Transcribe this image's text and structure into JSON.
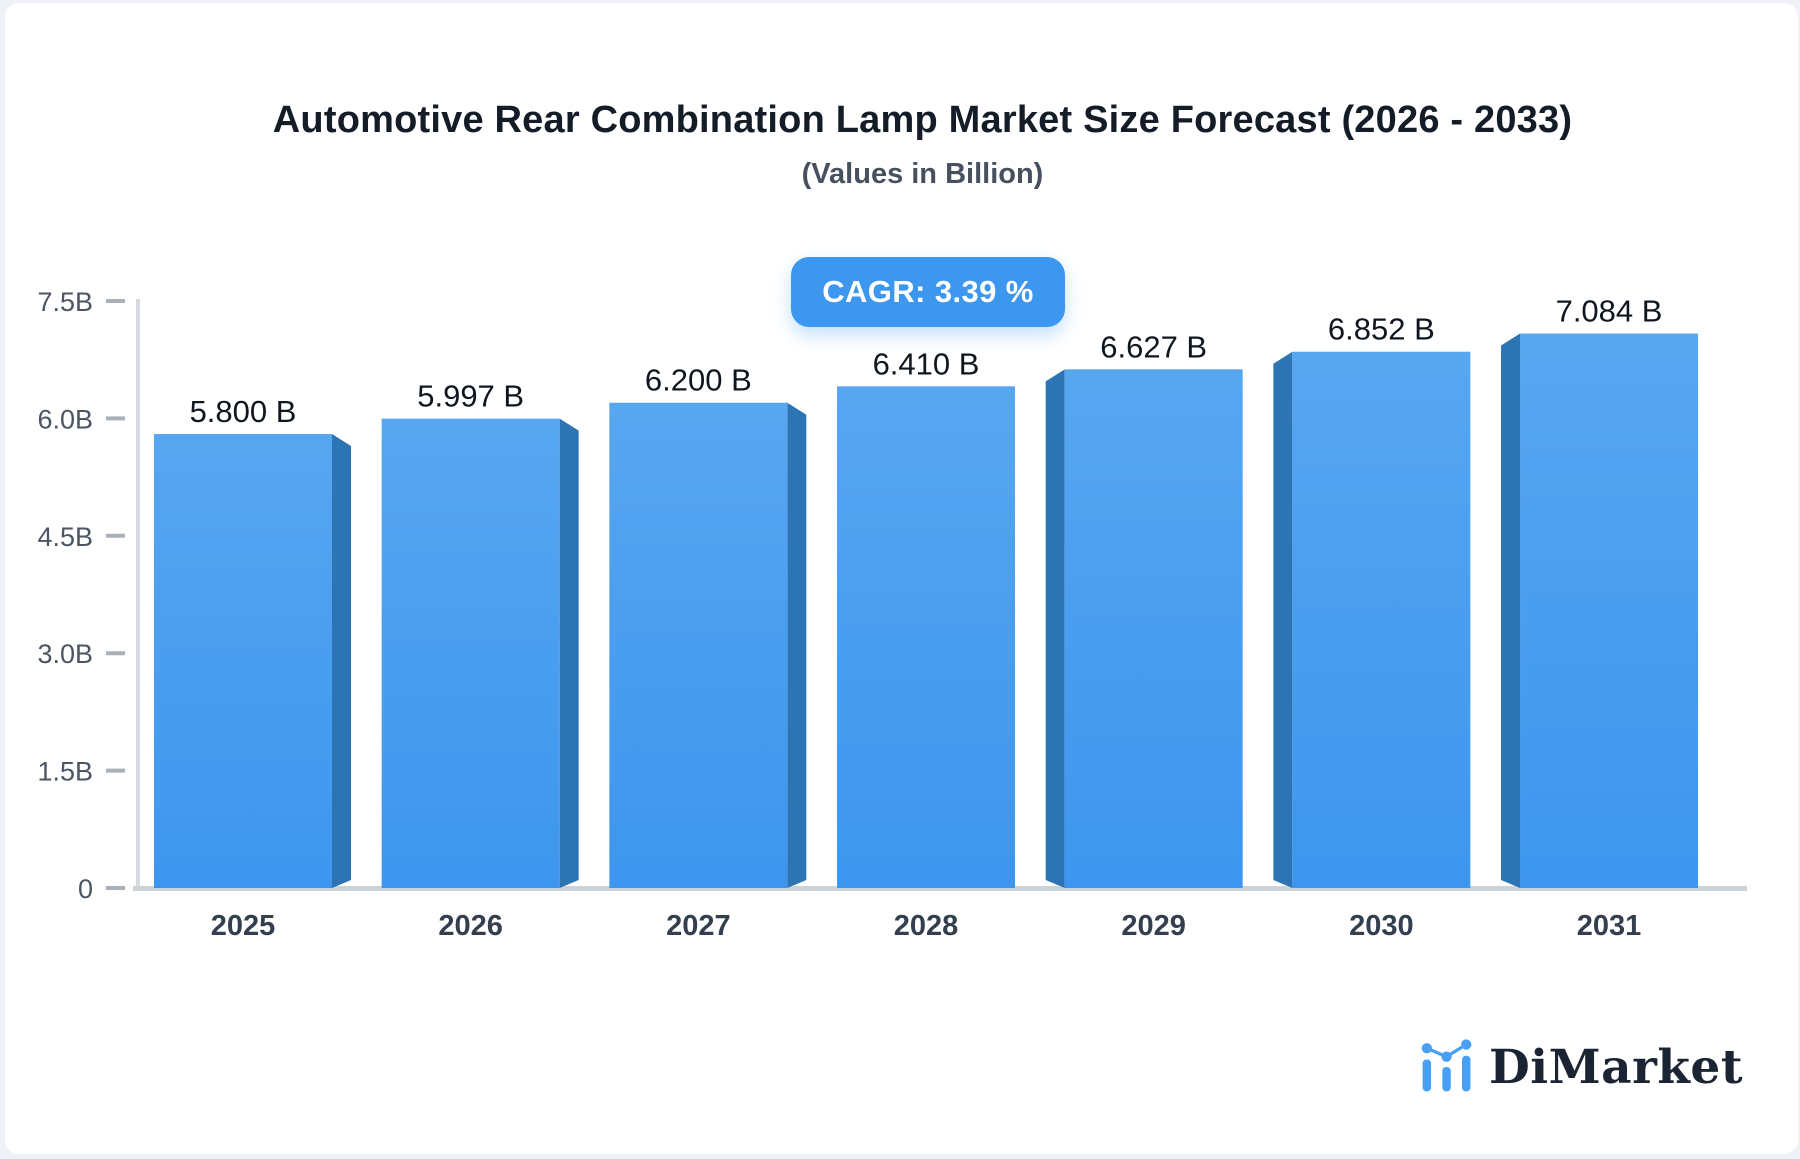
{
  "header": {
    "title": "Automotive Rear Combination Lamp Market Size Forecast (2026 - 2033)",
    "subtitle": "(Values in Billion)"
  },
  "badge": {
    "label": "CAGR: 3.39 %"
  },
  "chart_data": {
    "type": "bar",
    "title": "Automotive Rear Combination Lamp Market Size Forecast (2026 - 2033)",
    "subtitle": "(Values in Billion)",
    "categories": [
      "2025",
      "2026",
      "2027",
      "2028",
      "2029",
      "2030",
      "2031"
    ],
    "values": [
      5.8,
      5.997,
      6.2,
      6.41,
      6.627,
      6.852,
      7.084
    ],
    "value_labels": [
      "5.800 B",
      "5.997 B",
      "6.200 B",
      "6.410 B",
      "6.627 B",
      "6.852 B",
      "7.084 B"
    ],
    "cagr_label": "CAGR: 3.39 %",
    "xlabel": "",
    "ylabel": "",
    "ylim": [
      0,
      7.5
    ],
    "yticks": [
      {
        "value": 7.5,
        "label": "7.5B"
      },
      {
        "value": 6.0,
        "label": "6.0B"
      },
      {
        "value": 4.5,
        "label": "4.5B"
      },
      {
        "value": 3.0,
        "label": "3.0B"
      },
      {
        "value": 1.5,
        "label": "1.5B"
      },
      {
        "value": 0,
        "label": "0"
      }
    ],
    "grid": false,
    "legend": "none",
    "style": {
      "bar_face_top": "#57a6f0",
      "bar_face_bottom": "#3d96ee",
      "bar_side": "#2d74b4",
      "badge_bg": "#3d97ee",
      "badge_text": "#ffffff",
      "axis_line": "#d6dade",
      "baseline": "#cdd2d7",
      "tick_dash": "#a9b0b8",
      "tick_text": "#4b5563",
      "value_text": "#10161f",
      "category_text": "#333e4e"
    }
  },
  "footer": {
    "logo": {
      "icon": "bar-chart-trend-icon",
      "text": "DiMarket",
      "text_color": "#1a2433",
      "accent_color": "#47a0f5"
    }
  }
}
